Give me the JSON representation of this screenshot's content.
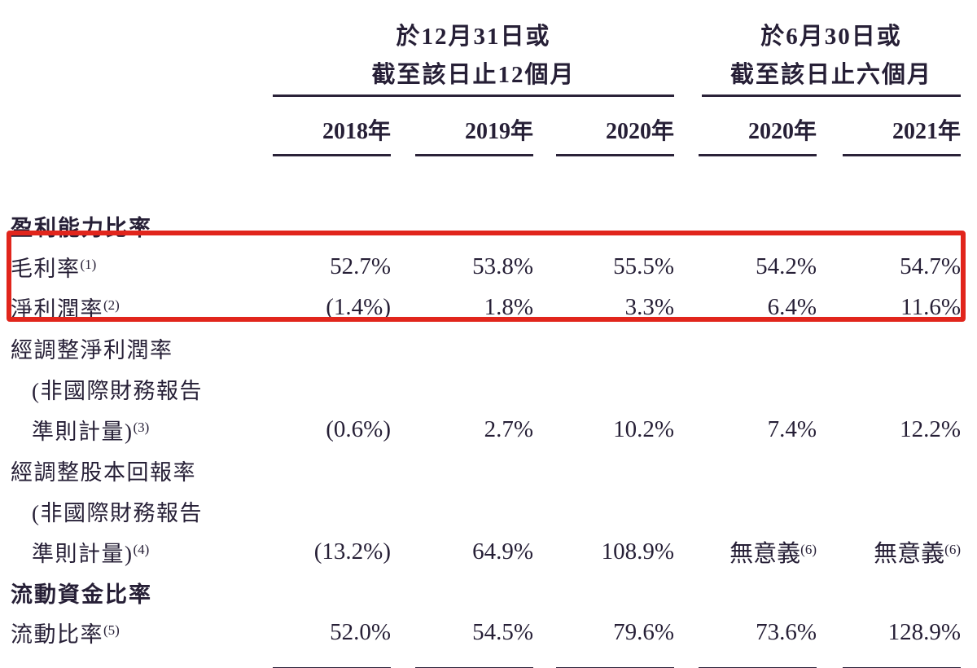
{
  "table": {
    "column_groups": [
      {
        "line1": "於12月31日或",
        "line2": "截至該日止12個月"
      },
      {
        "line1": "於6月30日或",
        "line2": "截至該日止六個月"
      }
    ],
    "year_columns": [
      "2018年",
      "2019年",
      "2020年",
      "2020年",
      "2021年"
    ],
    "rows": [
      {
        "type": "section",
        "label": "盈利能力比率"
      },
      {
        "type": "data",
        "label": "毛利率",
        "sup": "(1)",
        "values": [
          "52.7%",
          "53.8%",
          "55.5%",
          "54.2%",
          "54.7%"
        ],
        "highlighted": true
      },
      {
        "type": "data",
        "label": "淨利潤率",
        "sup": "(2)",
        "values": [
          "(1.4%)",
          "1.8%",
          "3.3%",
          "6.4%",
          "11.6%"
        ],
        "highlighted": true
      },
      {
        "type": "label",
        "label": "經調整淨利潤率"
      },
      {
        "type": "label",
        "label": "(非國際財務報告",
        "indent": true
      },
      {
        "type": "data",
        "label": "準則計量)",
        "sup": "(3)",
        "indent": true,
        "values": [
          "(0.6%)",
          "2.7%",
          "10.2%",
          "7.4%",
          "12.2%"
        ]
      },
      {
        "type": "label",
        "label": "經調整股本回報率"
      },
      {
        "type": "label",
        "label": "(非國際財務報告",
        "indent": true
      },
      {
        "type": "data",
        "label": "準則計量)",
        "sup": "(4)",
        "indent": true,
        "values": [
          "(13.2%)",
          "64.9%",
          "108.9%",
          {
            "text": "無意義",
            "sup": "(6)"
          },
          {
            "text": "無意義",
            "sup": "(6)"
          }
        ]
      },
      {
        "type": "section",
        "label": "流動資金比率"
      },
      {
        "type": "data",
        "label": "流動比率",
        "sup": "(5)",
        "values": [
          "52.0%",
          "54.5%",
          "79.6%",
          "73.6%",
          "128.9%"
        ],
        "short": true
      },
      {
        "type": "double_rule"
      }
    ],
    "highlight_color": "#e1251c"
  }
}
